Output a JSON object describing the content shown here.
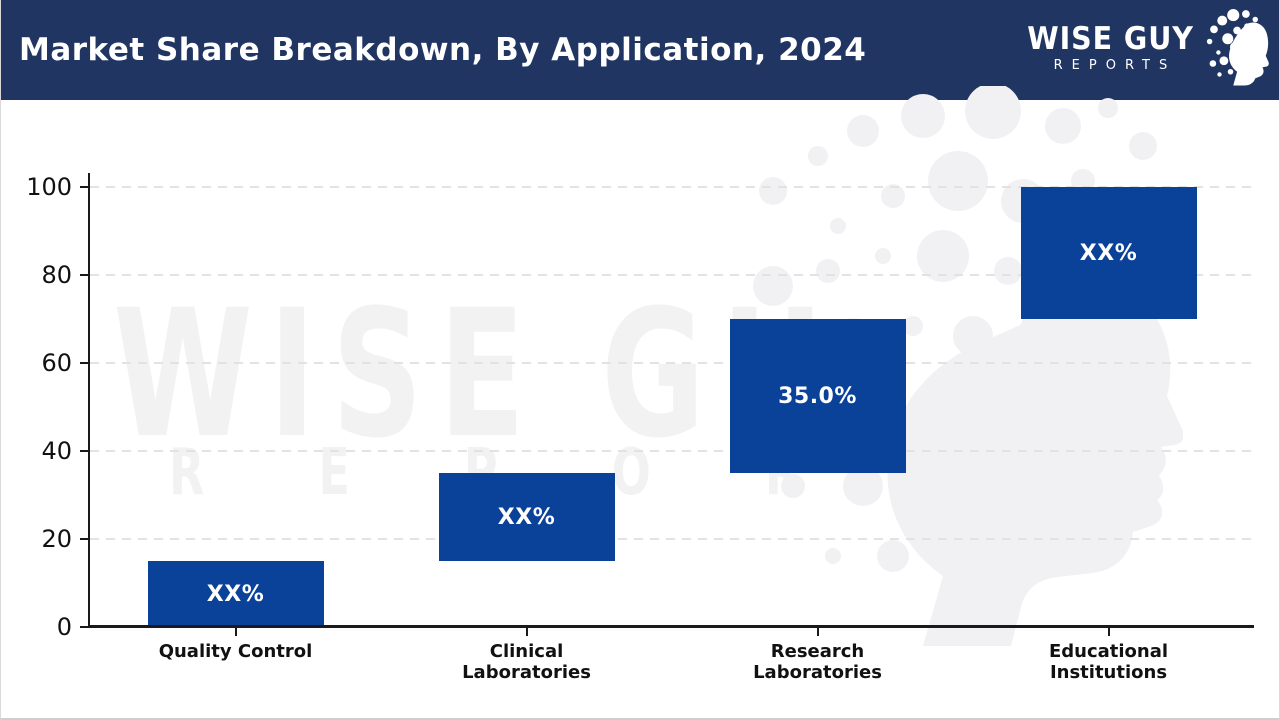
{
  "header": {
    "title": "Market Share Breakdown, By Application, 2024",
    "bg_color": "#213563",
    "logo": {
      "line1": "WISE GUY",
      "line2": "REPORTS"
    }
  },
  "watermark": {
    "line1": "WISE GU",
    "line2": "R E P O R T S"
  },
  "chart_data": {
    "type": "bar",
    "subtype": "waterfall",
    "title": "Market Share Breakdown, By Application, 2024",
    "categories": [
      "Quality Control",
      "Clinical Laboratories",
      "Research Laboratories",
      "Educational Institutions"
    ],
    "category_label_lines": [
      [
        "Quality Control"
      ],
      [
        "Clinical",
        "Laboratories"
      ],
      [
        "Research",
        "Laboratories"
      ],
      [
        "Educational",
        "Institutions"
      ]
    ],
    "segments": [
      {
        "category": "Quality Control",
        "start": 0,
        "end": 15,
        "label": "XX%"
      },
      {
        "category": "Clinical Laboratories",
        "start": 15,
        "end": 35,
        "label": "XX%"
      },
      {
        "category": "Research Laboratories",
        "start": 35,
        "end": 70,
        "label": "35.0%"
      },
      {
        "category": "Educational Institutions",
        "start": 70,
        "end": 100,
        "label": "XX%"
      }
    ],
    "ylim": [
      0,
      100
    ],
    "yticks": [
      "0",
      "20",
      "40",
      "60",
      "80",
      "100"
    ],
    "grid": true,
    "legend": false,
    "bar_color": "#0a4199",
    "bar_label_color": "#ffffff",
    "grid_color": "#e2e2e2",
    "axis_color": "#1a1a1a"
  }
}
